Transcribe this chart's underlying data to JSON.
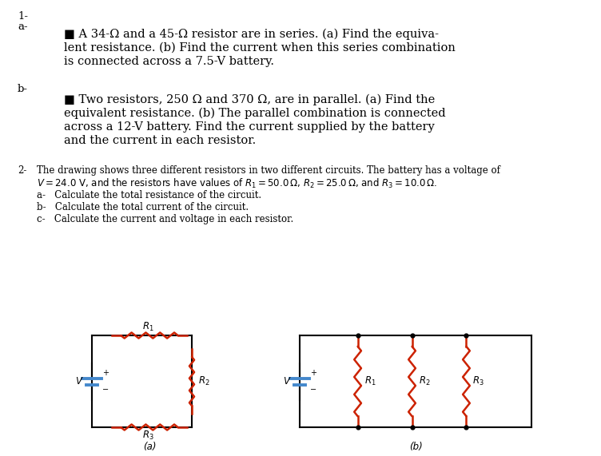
{
  "bg_color": "#ffffff",
  "text_color": "#000000",
  "resistor_color": "#cc2200",
  "battery_color": "#4488cc",
  "line_color": "#000000",
  "problem1_label": "1-",
  "problem1a_label": "a-",
  "problem1a_line1": "■ A 34-Ω and a 45-Ω resistor are in series. (a) Find the equiva-",
  "problem1a_line2": "lent resistance. (b) Find the current when this series combination",
  "problem1a_line3": "is connected across a 7.5-V battery.",
  "problem1b_label": "b-",
  "problem1b_line1": "■ Two resistors, 250 Ω and 370 Ω, are in parallel. (a) Find the",
  "problem1b_line2": "equivalent resistance. (b) The parallel combination is connected",
  "problem1b_line3": "across a 12-V battery. Find the current supplied by the battery",
  "problem1b_line4": "and the current in each resistor.",
  "problem2_label": "2-",
  "problem2_text": "The drawing shows three different resistors in two different circuits. The battery has a voltage of",
  "problem2_eq_plain": "V = 24.0 V, and the resistors have values of R",
  "problem2a": "a-   Calculate the total resistance of the circuit.",
  "problem2b": "b-   Calculate the total current of the circuit.",
  "problem2c": "c-   Calculate the current and voltage in each resistor.",
  "circuit_a_label": "(a)",
  "circuit_b_label": "(b)",
  "ca_l": 115,
  "ca_r": 240,
  "ca_t": 420,
  "ca_b": 535,
  "cb_l": 375,
  "cb_r": 665,
  "cb_t": 420,
  "cb_b": 535
}
